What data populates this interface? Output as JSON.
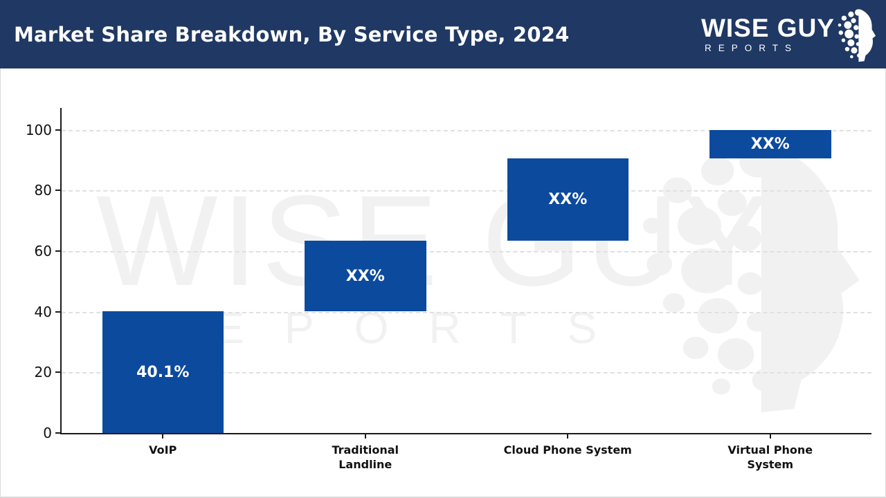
{
  "header": {
    "title": "Market Share Breakdown, By Service Type, 2024",
    "logo": {
      "line1": "WISE GUY",
      "line2": "REPORTS"
    }
  },
  "watermark": {
    "line1": "WISE GUY",
    "line2": "REPORTS"
  },
  "colors": {
    "header_bg": "#1f3864",
    "bar": "#0c4a9e",
    "bar_label": "#ffffff",
    "grid": "#e0e0e0",
    "axis": "#1a1a1a",
    "watermark": "#f1f1f1",
    "page_border": "#d9d9d9"
  },
  "chart_data": {
    "type": "bar",
    "subtype": "waterfall",
    "title": "Market Share Breakdown, By Service Type, 2024",
    "categories": [
      "VoIP",
      "Traditional Landline",
      "Cloud Phone System",
      "Virtual Phone System"
    ],
    "categories_wrapped": [
      [
        "VoIP"
      ],
      [
        "Traditional",
        "Landline"
      ],
      [
        "Cloud Phone System"
      ],
      [
        "Virtual Phone",
        "System"
      ]
    ],
    "segments": [
      {
        "category": "VoIP",
        "start": 0,
        "end": 40.1,
        "label": "40.1%"
      },
      {
        "category": "Traditional Landline",
        "start": 40.1,
        "end": 63.4,
        "label": "XX%"
      },
      {
        "category": "Cloud Phone System",
        "start": 63.4,
        "end": 90.6,
        "label": "XX%"
      },
      {
        "category": "Virtual Phone System",
        "start": 90.6,
        "end": 100,
        "label": "XX%"
      }
    ],
    "ylim": [
      0,
      104
    ],
    "yticks": [
      0,
      20,
      40,
      60,
      80,
      100
    ],
    "ytick_labels": [
      "0",
      "20",
      "40",
      "60",
      "80",
      "100"
    ],
    "xlabel": "",
    "ylabel": "",
    "legend": "none",
    "grid": "horizontal-dashed"
  }
}
